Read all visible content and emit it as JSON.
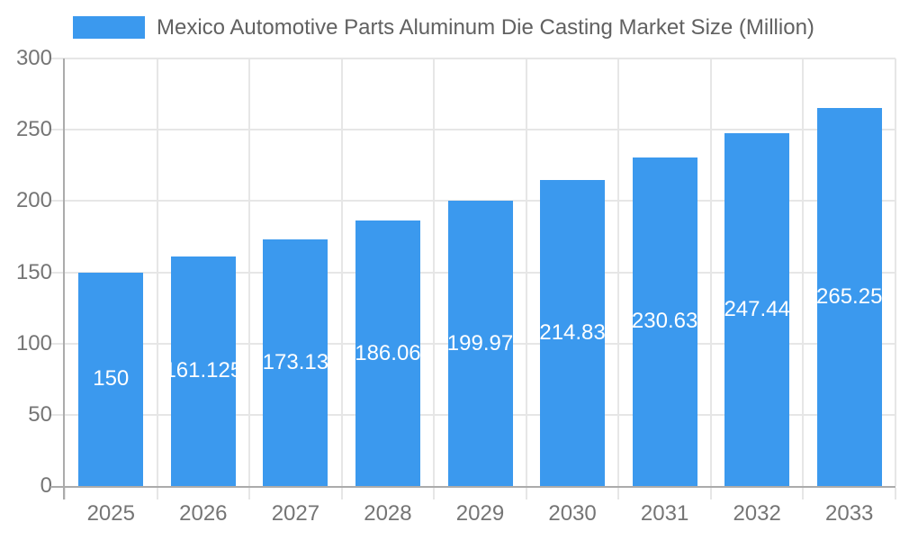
{
  "legend": {
    "label": "Mexico Automotive Parts Aluminum Die Casting Market Size (Million)"
  },
  "colors": {
    "bar": "#3b99ee",
    "grid": "#e6e6e6",
    "axis": "#ababab",
    "axis_label": "#757575",
    "legend_label": "#616161",
    "bar_label": "#ffffff",
    "background": "#ffffff"
  },
  "chart_data": {
    "type": "bar",
    "title": "Mexico Automotive Parts Aluminum Die Casting Market Size (Million)",
    "categories": [
      "2025",
      "2026",
      "2027",
      "2028",
      "2029",
      "2030",
      "2031",
      "2032",
      "2033"
    ],
    "values": [
      150,
      161.125,
      173.13,
      186.06,
      199.97,
      214.83,
      230.63,
      247.44,
      265.25
    ],
    "value_labels": [
      "150",
      "161.125",
      "173.13",
      "186.06",
      "199.97",
      "214.83",
      "230.63",
      "247.44",
      "265.25"
    ],
    "xlabel": "",
    "ylabel": "",
    "ylim": [
      0,
      300
    ],
    "yticks": [
      0,
      50,
      100,
      150,
      200,
      250,
      300
    ],
    "grid": true,
    "legend_position": "top",
    "bar_label_position": "inside-center"
  }
}
